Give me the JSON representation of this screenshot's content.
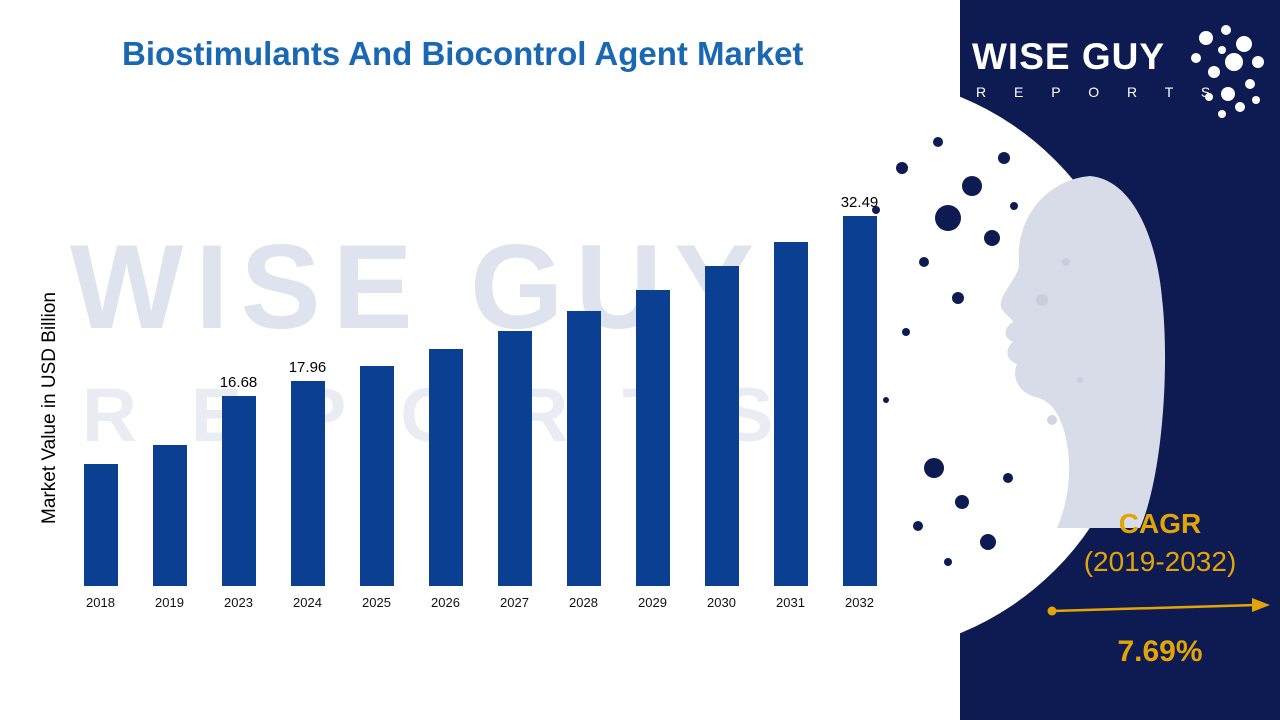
{
  "title": "Biostimulants And Biocontrol Agent Market",
  "ylabel": "Market Value in USD Billion",
  "watermark": {
    "line1": "WISE GUY",
    "line2": "REPORTS"
  },
  "logo": {
    "line1": "WISE GUY",
    "line2": "R E P O R T S"
  },
  "cagr": {
    "label": "CAGR",
    "range": "(2019-2032)",
    "value": "7.69%"
  },
  "colors": {
    "bar": "#0a3f92",
    "panel": "#0e1b52",
    "accent_gold": "#e3a506",
    "title_blue": "#1a67b3"
  },
  "chart_data": {
    "type": "bar",
    "title": "Biostimulants And Biocontrol Agent Market",
    "xlabel": "",
    "ylabel": "Market Value in USD Billion",
    "categories": [
      "2018",
      "2019",
      "2023",
      "2024",
      "2025",
      "2026",
      "2027",
      "2028",
      "2029",
      "2030",
      "2031",
      "2032"
    ],
    "values": [
      10.7,
      12.4,
      16.68,
      17.96,
      19.3,
      20.8,
      22.4,
      24.1,
      26.0,
      28.1,
      30.2,
      32.49
    ],
    "data_labels": {
      "2023": "16.68",
      "2024": "17.96",
      "2032": "32.49"
    },
    "ylim": [
      0,
      35
    ],
    "bar_color": "#0a3f92",
    "grid": false,
    "legend": false
  }
}
